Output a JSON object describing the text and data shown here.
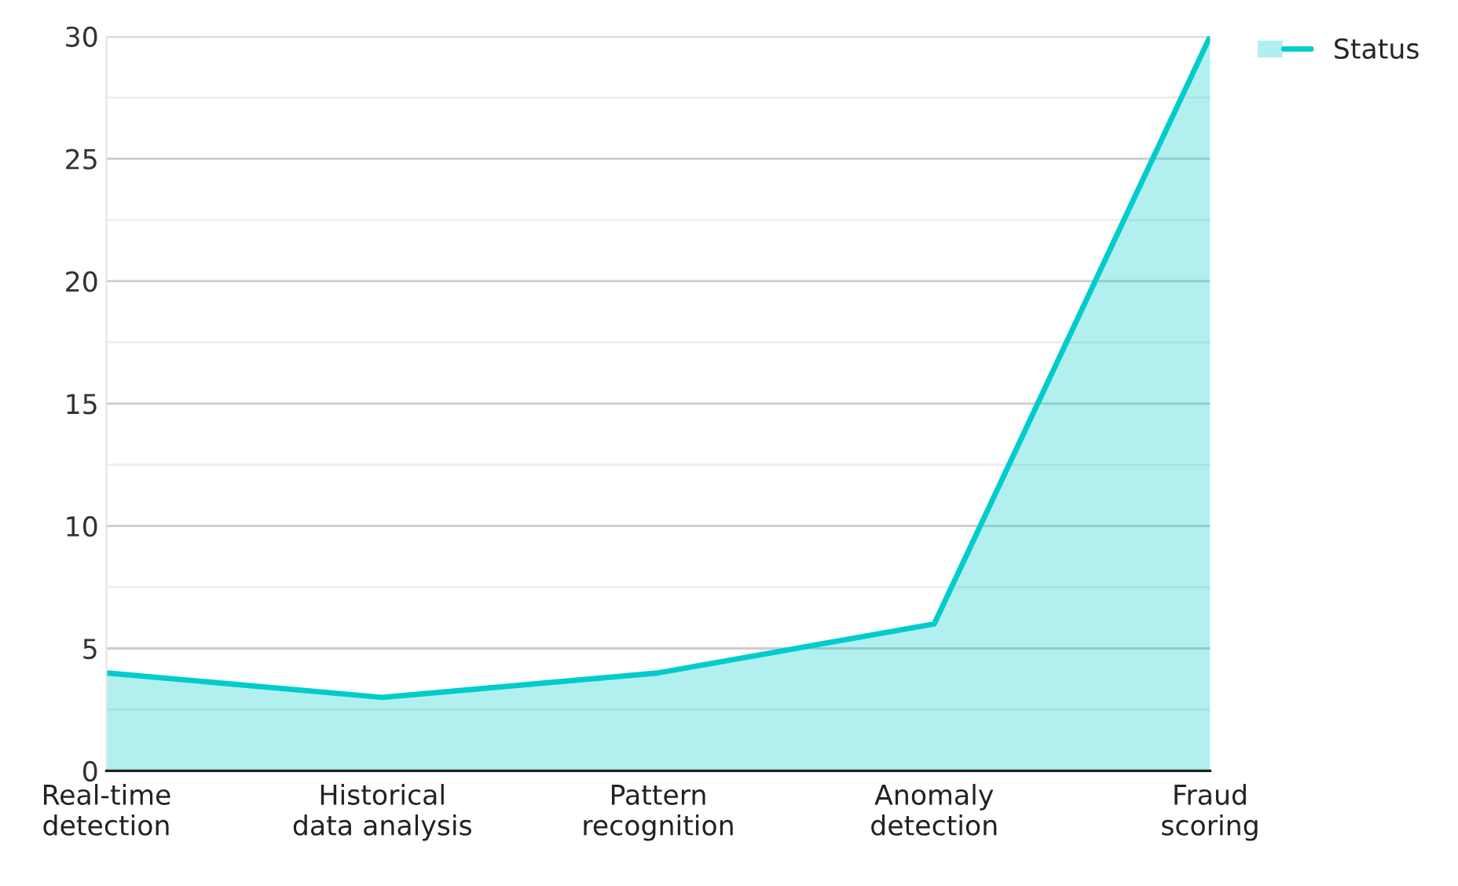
{
  "chart_data": {
    "type": "area",
    "categories": [
      "Real-time\ndetection",
      "Historical\ndata analysis",
      "Pattern\nrecognition",
      "Anomaly\ndetection",
      "Fraud\nscoring"
    ],
    "series": [
      {
        "name": "Status",
        "color": "#00cccc",
        "values": [
          4,
          3,
          4,
          6,
          30
        ]
      }
    ],
    "ylim": [
      0,
      30
    ],
    "yticks": [
      0,
      5,
      10,
      15,
      20,
      25,
      30
    ],
    "grid": "y",
    "legend": "top right",
    "marker": "none",
    "line_style": "solid"
  }
}
